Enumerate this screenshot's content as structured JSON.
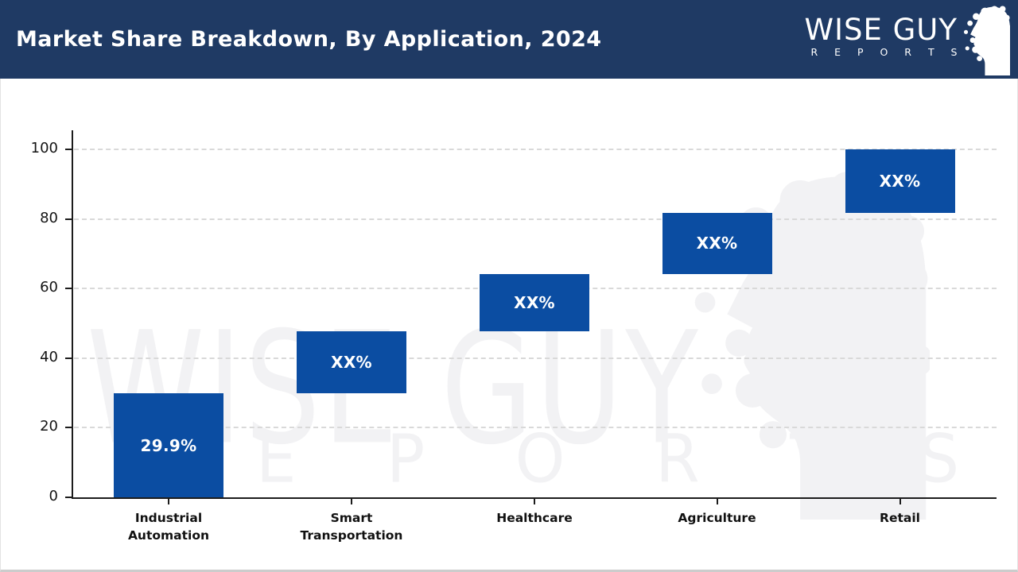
{
  "header": {
    "title": "Market Share Breakdown, By Application, 2024",
    "background_color": "#1f3a64",
    "logo": {
      "line1": "WISE GUY",
      "line2": "R E P O R T S"
    }
  },
  "watermark": {
    "line1": "WISE GUY",
    "line2": "R E P O R T S"
  },
  "chart_data": {
    "type": "bar",
    "subtype": "floating-segment-waterfall",
    "title": "Market Share Breakdown, By Application, 2024",
    "categories": [
      "Industrial Automation",
      "Smart Transportation",
      "Healthcare",
      "Agriculture",
      "Retail"
    ],
    "categories_display": [
      "Industrial\nAutomation",
      "Smart\nTransportation",
      "Healthcare",
      "Agriculture",
      "Retail"
    ],
    "bars": [
      {
        "category": "Industrial Automation",
        "start": 0,
        "end": 29.9,
        "label": "29.9%"
      },
      {
        "category": "Smart Transportation",
        "start": 30,
        "end": 47.8,
        "label": "XX%"
      },
      {
        "category": "Healthcare",
        "start": 47.8,
        "end": 64.2,
        "label": "XX%"
      },
      {
        "category": "Agriculture",
        "start": 64.2,
        "end": 81.8,
        "label": "XX%"
      },
      {
        "category": "Retail",
        "start": 81.8,
        "end": 100,
        "label": "XX%"
      }
    ],
    "ylim": [
      0,
      100
    ],
    "yticks": [
      0,
      20,
      40,
      60,
      80,
      100
    ],
    "xlabel": "",
    "ylabel": "",
    "grid": "horizontal-dashed",
    "legend": "none",
    "bar_color": "#0b4da2",
    "bar_label_color": "#ffffff",
    "axis_color": "#1c1c1c",
    "gridline_color": "#d9d9d9"
  }
}
